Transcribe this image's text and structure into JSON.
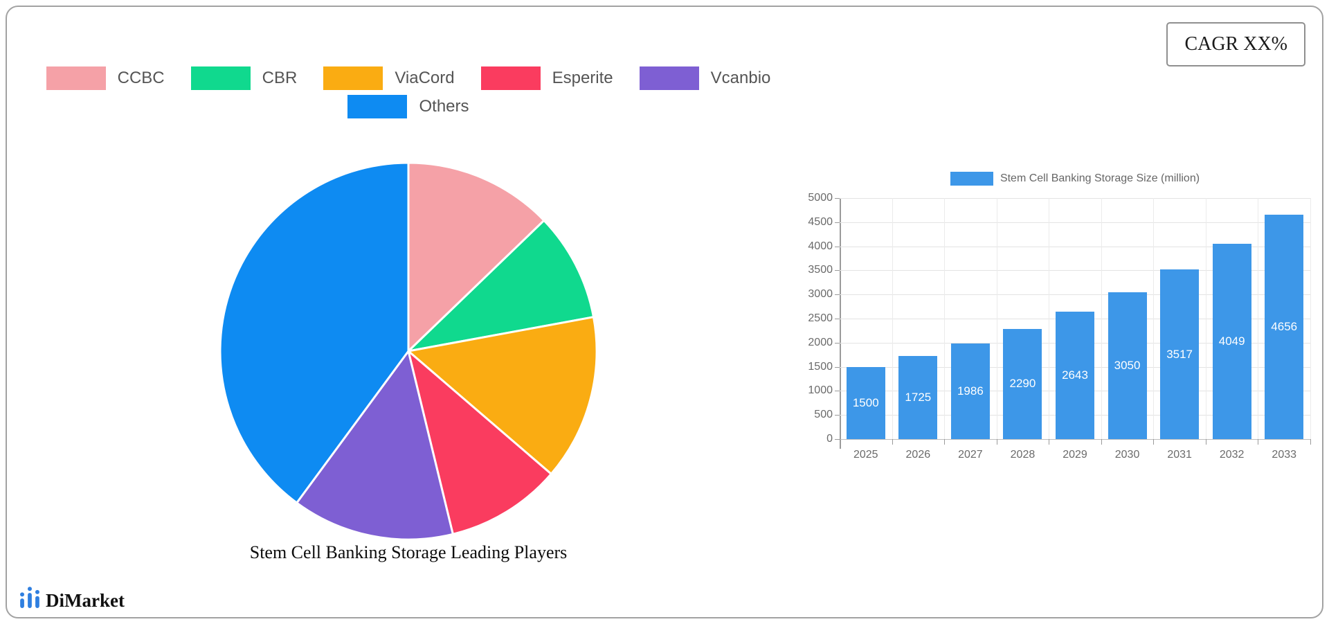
{
  "frame": {
    "cagr_label": "CAGR XX%"
  },
  "brand": {
    "name": "DiMarket",
    "icon": "bar-chart-logo-icon",
    "icon_color": "#2f7fe0"
  },
  "chart_data": [
    {
      "type": "pie",
      "title": "Stem Cell Banking Storage Leading Players",
      "labels": [
        "CCBC",
        "CBR",
        "ViaCord",
        "Esperite",
        "Vcanbio",
        "Others"
      ],
      "values_percent": [
        12.8,
        9.3,
        14.2,
        9.9,
        13.9,
        39.9
      ],
      "colors": [
        "#f5a1a7",
        "#10d98e",
        "#faac12",
        "#fa3c5f",
        "#7e5fd3",
        "#0e8bf2"
      ],
      "start_angle_deg": 0,
      "direction": "clockwise",
      "slice_border_color": "#ffffff",
      "legend_position": "top",
      "legend_row_split": 5,
      "legend_text_color": "#555555"
    },
    {
      "type": "bar",
      "series_name": "Stem Cell Banking Storage Size (million)",
      "categories": [
        "2025",
        "2026",
        "2027",
        "2028",
        "2029",
        "2030",
        "2031",
        "2032",
        "2033"
      ],
      "values": [
        1500,
        1725,
        1986,
        2290,
        2643,
        3050,
        3517,
        4049,
        4656
      ],
      "bar_color": "#3d97e8",
      "value_label_color": "#ffffff",
      "ylim": [
        0,
        5000
      ],
      "ytick_step": 500,
      "grid": true,
      "legend_position": "top",
      "axis_text_color": "#6a6a6a"
    }
  ]
}
